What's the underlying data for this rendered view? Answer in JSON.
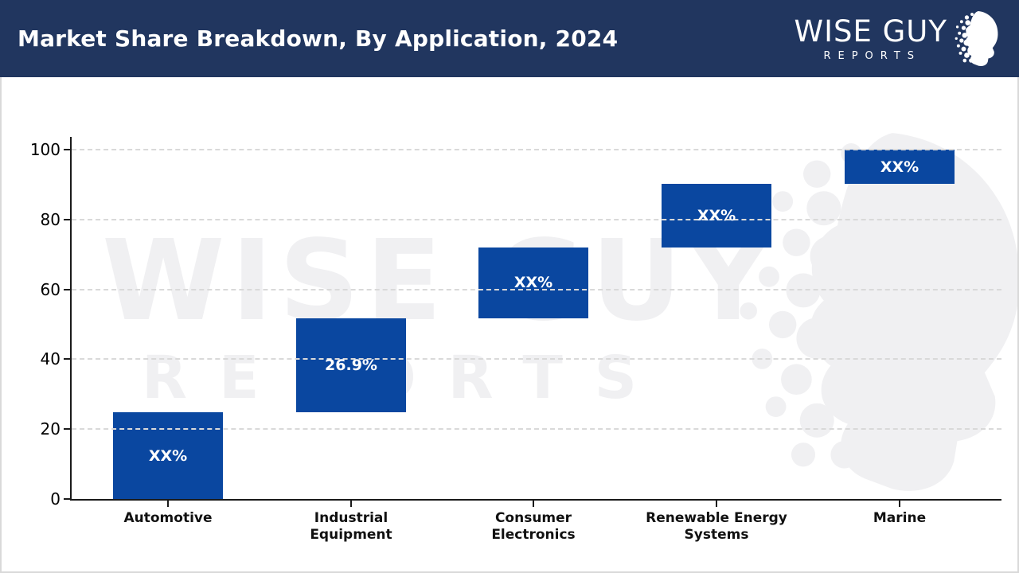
{
  "theme": {
    "header_bg": "#21365f",
    "bar_color": "#0a47a0",
    "grid_color": "#d9d9d9",
    "watermark_color": "#f0f0f2"
  },
  "header": {
    "title": "Market Share Breakdown, By Application, 2024",
    "logo": {
      "brand": "WISE GUY",
      "sub": "REPORTS"
    }
  },
  "watermark": {
    "brand": "WISE GUY",
    "sub": "REPORTS"
  },
  "chart_data": {
    "type": "bar",
    "subtype": "waterfall",
    "title": "Market Share Breakdown, By Application, 2024",
    "xlabel": "",
    "ylabel": "",
    "ylim": [
      0,
      105
    ],
    "yticks": [
      0,
      20,
      40,
      60,
      80,
      100
    ],
    "grid": "horizontal-dashed",
    "legend": "none",
    "categories": [
      "Automotive",
      "Industrial Equipment",
      "Consumer Electronics",
      "Renewable Energy Systems",
      "Marine"
    ],
    "segments": [
      {
        "label": "Automotive",
        "label_lines": [
          "Automotive"
        ],
        "start": 0,
        "end": 24.8,
        "value": 24.8,
        "value_label": "XX%"
      },
      {
        "label": "Industrial Equipment",
        "label_lines": [
          "Industrial",
          "Equipment"
        ],
        "start": 24.8,
        "end": 51.7,
        "value": 26.9,
        "value_label": "26.9%"
      },
      {
        "label": "Consumer Electronics",
        "label_lines": [
          "Consumer",
          "Electronics"
        ],
        "start": 51.7,
        "end": 72.0,
        "value": 20.3,
        "value_label": "XX%"
      },
      {
        "label": "Renewable Energy Systems",
        "label_lines": [
          "Renewable Energy",
          "Systems"
        ],
        "start": 72.0,
        "end": 90.2,
        "value": 18.2,
        "value_label": "XX%"
      },
      {
        "label": "Marine",
        "label_lines": [
          "Marine"
        ],
        "start": 90.2,
        "end": 100.0,
        "value": 9.8,
        "value_label": "XX%"
      }
    ]
  }
}
